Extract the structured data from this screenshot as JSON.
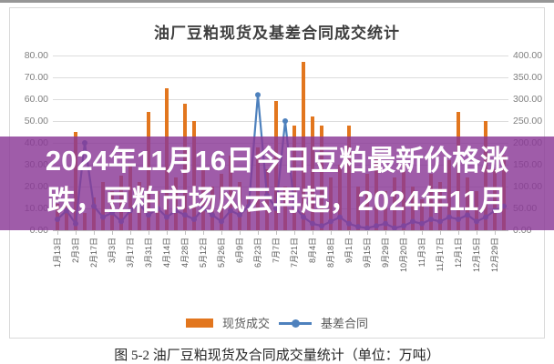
{
  "page": {
    "banner": {
      "lines": [
        "2024年11月16日今日豆粕最新价格涨",
        "跌，豆粕市场风云再起，2024年11月"
      ]
    },
    "caption": "图 5-2 油厂豆粕现货及合同成交量统计（单位：万吨）"
  },
  "chart_data": {
    "type": "bar+line",
    "title": "油厂豆粕现货及基差合同成交统计",
    "unit": "万吨",
    "n_points": 50,
    "label_every": 2,
    "x_tick_labels": [
      "1月13日",
      "2月3日",
      "2月17日",
      "3月3日",
      "3月17日",
      "3月31日",
      "4月14日",
      "4月28日",
      "5月12日",
      "5月26日",
      "6月9日",
      "6月23日",
      "7月7日",
      "7月21日",
      "8月4日",
      "8月18日",
      "9月1日",
      "9月15日",
      "9月29日",
      "10月20日",
      "11月3日",
      "11月17日",
      "12月1日",
      "12月15日",
      "12月29日"
    ],
    "left_axis": {
      "min": 0,
      "max": 80,
      "step": 10,
      "format": "0.00"
    },
    "right_axis": {
      "min": 0,
      "max": 400,
      "step": 50,
      "format": "0.00"
    },
    "grid": true,
    "legend_position": "bottom",
    "series": [
      {
        "name": "现货成交",
        "type": "bar",
        "axis": "left",
        "color": "#e2761e",
        "values": [
          12,
          20,
          45,
          8,
          15,
          22,
          18,
          25,
          30,
          22,
          54,
          18,
          65,
          24,
          58,
          50,
          32,
          20,
          26,
          34,
          22,
          16,
          38,
          28,
          59,
          20,
          48,
          77,
          52,
          48,
          24,
          30,
          48,
          20,
          26,
          34,
          18,
          24,
          30,
          20,
          14,
          26,
          22,
          32,
          54,
          24,
          18,
          50,
          28,
          34
        ]
      },
      {
        "name": "基差合同",
        "type": "line",
        "axis": "right",
        "color": "#4e81bd",
        "values": [
          25,
          45,
          15,
          200,
          55,
          30,
          40,
          20,
          45,
          60,
          35,
          50,
          30,
          45,
          35,
          25,
          50,
          35,
          20,
          45,
          35,
          55,
          310,
          80,
          50,
          250,
          55,
          30,
          15,
          10,
          20,
          30,
          15,
          8,
          5,
          10,
          15,
          5,
          10,
          20,
          15,
          25,
          20,
          30,
          25,
          35,
          20,
          30,
          45,
          55
        ]
      }
    ]
  },
  "colors": {
    "bar": "#e2761e",
    "line": "#4e81bd",
    "banner_bg": "#8a3896",
    "grid": "#dcdcdc",
    "axis_text": "#7f7f7f",
    "tick_text": "#595959"
  }
}
